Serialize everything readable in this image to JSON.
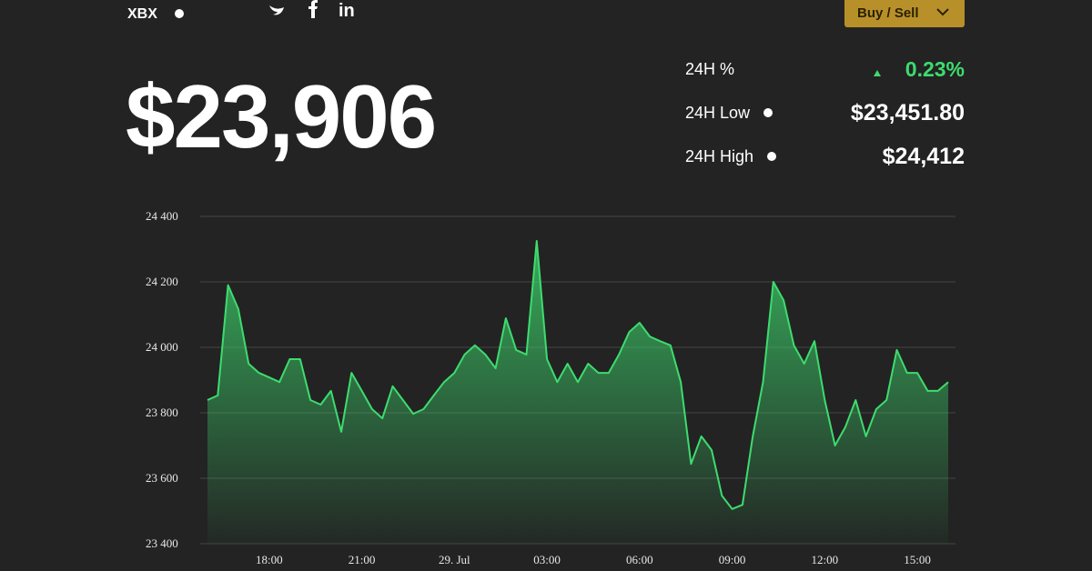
{
  "header": {
    "ticker": "XBX",
    "action": "Buy / Sell",
    "price": "$23,906"
  },
  "stats": [
    {
      "label": "24H %",
      "value": "0.23%"
    },
    {
      "label": "24H Low",
      "value": "$23,451.80"
    },
    {
      "label": "24H High",
      "value": "$24,412"
    }
  ],
  "chart_data": {
    "type": "area",
    "categories": [
      null,
      null,
      null,
      null,
      null,
      null,
      "18:00",
      null,
      null,
      null,
      null,
      null,
      null,
      null,
      null,
      "21:00",
      null,
      null,
      null,
      null,
      null,
      null,
      null,
      null,
      "29. Jul",
      null,
      null,
      null,
      null,
      null,
      null,
      null,
      null,
      "03:00",
      null,
      null,
      null,
      null,
      null,
      null,
      null,
      null,
      "06:00",
      null,
      null,
      null,
      null,
      null,
      null,
      null,
      null,
      "09:00",
      null,
      null,
      null,
      null,
      null,
      null,
      null,
      null,
      "12:00",
      null,
      null,
      null,
      null,
      null,
      null,
      null,
      null,
      "15:00",
      null,
      null,
      null
    ],
    "values": [
      23839,
      23853,
      24190,
      24117,
      23950,
      23922,
      23908,
      23894,
      23964,
      23964,
      23839,
      23825,
      23867,
      23742,
      23922,
      23867,
      23811,
      23783,
      23881,
      23839,
      23797,
      23811,
      23853,
      23894,
      23922,
      23978,
      24006,
      23978,
      23936,
      24089,
      23992,
      23978,
      24325,
      23964,
      23894,
      23950,
      23894,
      23950,
      23922,
      23922,
      23978,
      24047,
      24075,
      24033,
      24019,
      24006,
      23894,
      23644,
      23728,
      23686,
      23547,
      23506,
      23519,
      23728,
      23894,
      24200,
      24144,
      24006,
      23950,
      24019,
      23839,
      23700,
      23756,
      23839,
      23728,
      23811,
      23839,
      23992,
      23922,
      23922,
      23867,
      23867,
      23894
    ],
    "color": "#3ddc6e",
    "ylim": [
      23400,
      24400
    ],
    "yticks": [
      {
        "value": 23400,
        "label": "23 400"
      },
      {
        "value": 23600,
        "label": "23 600"
      },
      {
        "value": 23800,
        "label": "23 800"
      },
      {
        "value": 24000,
        "label": "24 000"
      },
      {
        "value": 24200,
        "label": "24 200"
      },
      {
        "value": 24400,
        "label": "24 400"
      }
    ],
    "grid": true
  }
}
